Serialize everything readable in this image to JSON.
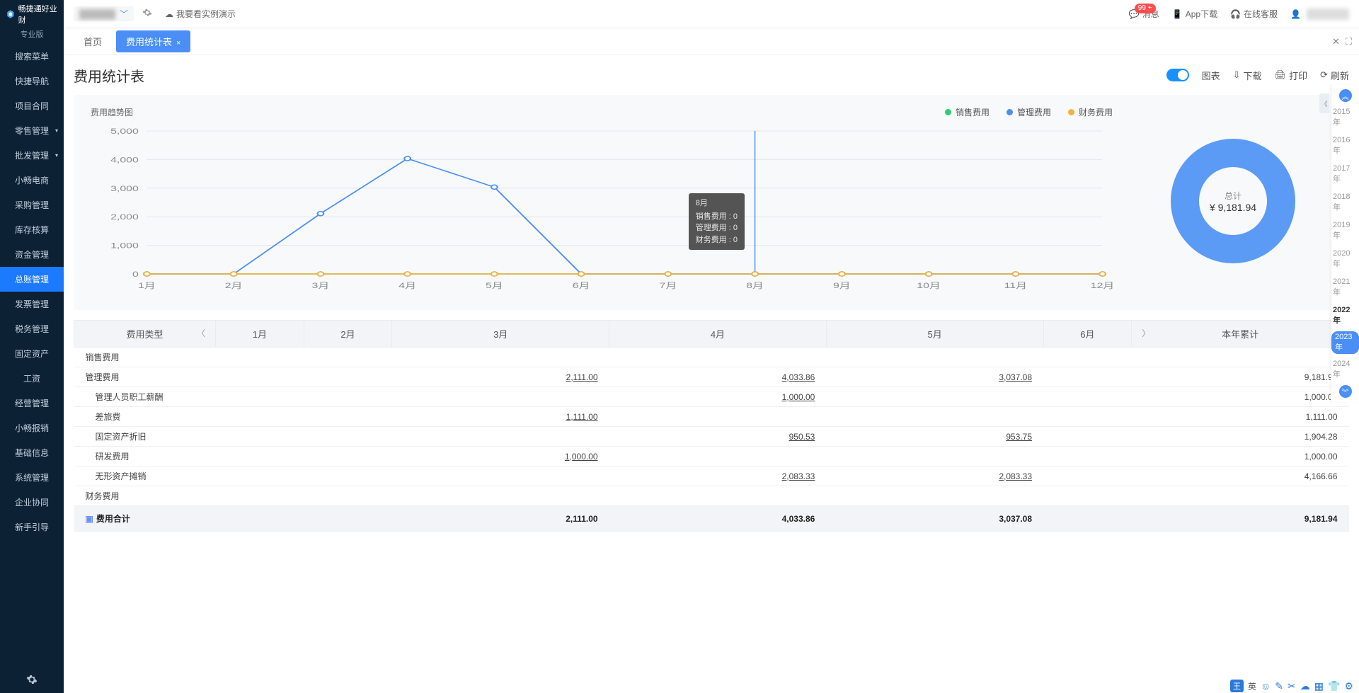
{
  "brand": {
    "name": "畅捷通好业财",
    "edition": "专业版"
  },
  "sidebar": {
    "items": [
      {
        "label": "搜索菜单",
        "expandable": false
      },
      {
        "label": "快捷导航",
        "expandable": false
      },
      {
        "label": "项目合同",
        "expandable": false
      },
      {
        "label": "零售管理",
        "expandable": true
      },
      {
        "label": "批发管理",
        "expandable": true
      },
      {
        "label": "小畅电商",
        "expandable": false
      },
      {
        "label": "采购管理",
        "expandable": false
      },
      {
        "label": "库存核算",
        "expandable": false
      },
      {
        "label": "资金管理",
        "expandable": false
      },
      {
        "label": "总账管理",
        "expandable": false,
        "active": true
      },
      {
        "label": "发票管理",
        "expandable": false
      },
      {
        "label": "税务管理",
        "expandable": false
      },
      {
        "label": "固定资产",
        "expandable": false
      },
      {
        "label": "工资",
        "expandable": false
      },
      {
        "label": "经营管理",
        "expandable": false
      },
      {
        "label": "小畅报销",
        "expandable": false
      },
      {
        "label": "基础信息",
        "expandable": false
      },
      {
        "label": "系统管理",
        "expandable": false
      },
      {
        "label": "企业协同",
        "expandable": false
      },
      {
        "label": "新手引导",
        "expandable": false
      }
    ]
  },
  "topbar": {
    "org_placeholder": "██████",
    "demo": "我要看实例演示",
    "actions": {
      "messages": "消息",
      "badge": "99 +",
      "app": "App下载",
      "support": "在线客服"
    }
  },
  "tabs": {
    "items": [
      {
        "label": "首页",
        "active": false,
        "closable": false
      },
      {
        "label": "费用统计表",
        "active": true,
        "closable": true
      }
    ]
  },
  "page": {
    "title": "费用统计表",
    "actions": {
      "chart_toggle": "图表",
      "download": "下载",
      "print": "打印",
      "refresh": "刷新"
    }
  },
  "line_chart": {
    "type": "line",
    "title": "费用趋势图",
    "legend": [
      {
        "label": "销售费用",
        "color": "#2ecc71"
      },
      {
        "label": "管理费用",
        "color": "#4a8ef6"
      },
      {
        "label": "财务费用",
        "color": "#f5b041"
      }
    ],
    "x_labels": [
      "1月",
      "2月",
      "3月",
      "4月",
      "5月",
      "6月",
      "7月",
      "8月",
      "9月",
      "10月",
      "11月",
      "12月"
    ],
    "y_ticks": [
      0,
      1000,
      2000,
      3000,
      4000,
      5000
    ],
    "ylim": [
      0,
      5000
    ],
    "series": {
      "sales": [
        0,
        0,
        0,
        0,
        0,
        0,
        0,
        0,
        0,
        0,
        0,
        0
      ],
      "admin": [
        0,
        0,
        2111,
        4034,
        3037,
        0,
        0,
        0,
        0,
        0,
        0,
        0
      ],
      "finance": [
        0,
        0,
        0,
        0,
        0,
        0,
        0,
        0,
        0,
        0,
        0,
        0
      ]
    },
    "hover_index": 7,
    "tooltip": {
      "title": "8月",
      "rows": [
        {
          "label": "销售费用",
          "value": "0"
        },
        {
          "label": "管理费用",
          "value": "0"
        },
        {
          "label": "财务费用",
          "value": "0"
        }
      ]
    },
    "background": "#f8f9fb",
    "grid_color": "#e4e8ee",
    "axis_color": "#cfd6df",
    "label_color": "#8a8a8a",
    "label_fontsize": 11,
    "line_width": 1.5,
    "marker_radius": 3
  },
  "donut": {
    "type": "donut",
    "center_label": "总计",
    "center_value": "¥ 9,181.94",
    "slices": [
      {
        "label": "管理费用",
        "value": 9181.94,
        "color": "#5b9bf5"
      },
      {
        "label": "销售费用",
        "value": 0,
        "color": "#2ecc71"
      },
      {
        "label": "财务费用",
        "value": 0,
        "color": "#f5b041"
      }
    ],
    "inner_radius": 48,
    "outer_radius": 88,
    "background": "#f8f9fb"
  },
  "table": {
    "columns": [
      "费用类型",
      "1月",
      "2月",
      "3月",
      "4月",
      "5月",
      "6月",
      "本年累计"
    ],
    "rows": [
      {
        "label": "销售费用",
        "indent": 0,
        "cells": [
          "",
          "",
          "",
          "",
          "",
          "",
          ""
        ]
      },
      {
        "label": "管理费用",
        "indent": 0,
        "cells": [
          "",
          "",
          "2,111.00",
          "4,033.86",
          "3,037.08",
          "",
          "9,181.94"
        ],
        "links": [
          2,
          3,
          4
        ]
      },
      {
        "label": "管理人员职工薪酬",
        "indent": 1,
        "cells": [
          "",
          "",
          "",
          "1,000.00",
          "",
          "",
          "1,000.00"
        ],
        "links": [
          3
        ]
      },
      {
        "label": "差旅费",
        "indent": 1,
        "cells": [
          "",
          "",
          "1,111.00",
          "",
          "",
          "",
          "1,111.00"
        ],
        "links": [
          2
        ]
      },
      {
        "label": "固定资产折旧",
        "indent": 1,
        "cells": [
          "",
          "",
          "",
          "950.53",
          "953.75",
          "",
          "1,904.28"
        ],
        "links": [
          3,
          4
        ]
      },
      {
        "label": "研发费用",
        "indent": 1,
        "cells": [
          "",
          "",
          "1,000.00",
          "",
          "",
          "",
          "1,000.00"
        ],
        "links": [
          2
        ]
      },
      {
        "label": "无形资产摊销",
        "indent": 1,
        "cells": [
          "",
          "",
          "",
          "2,083.33",
          "2,083.33",
          "",
          "4,166.66"
        ],
        "links": [
          3,
          4
        ]
      },
      {
        "label": "财务费用",
        "indent": 0,
        "cells": [
          "",
          "",
          "",
          "",
          "",
          "",
          ""
        ]
      }
    ],
    "total": {
      "label": "费用合计",
      "cells": [
        "",
        "",
        "2,111.00",
        "4,033.86",
        "3,037.08",
        "",
        "9,181.94"
      ]
    }
  },
  "year_rail": {
    "years": [
      "2015年",
      "2016年",
      "2017年",
      "2018年",
      "2019年",
      "2020年",
      "2021年",
      "2022年",
      "2023年",
      "2024年"
    ],
    "strong": "2022年",
    "active": "2023年"
  },
  "colors": {
    "sidebar_bg": "#0c2134",
    "active_nav": "#1b7aff",
    "primary": "#4a8ef6",
    "panel_bg": "#f8f9fb",
    "header_bg": "#f2f4f7"
  }
}
